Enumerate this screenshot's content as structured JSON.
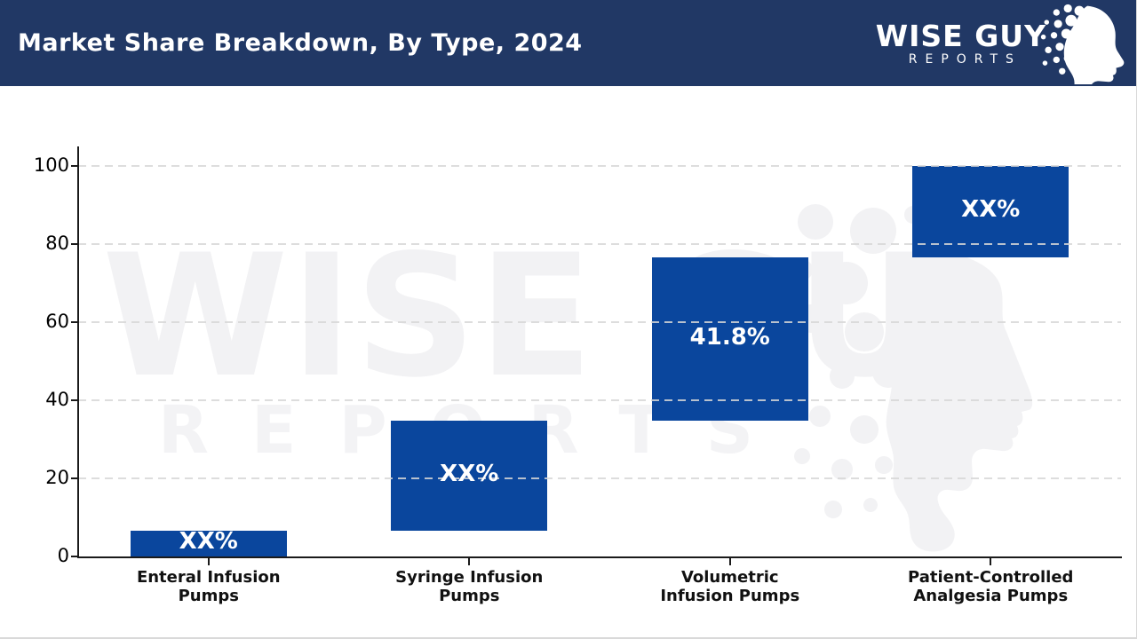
{
  "header": {
    "title": "Market Share Breakdown, By Type, 2024",
    "logo": {
      "name": "WISE GUY",
      "reports": "REPORTS"
    }
  },
  "watermark": {
    "line1": "WISE GU",
    "line2": "REPORTS"
  },
  "colors": {
    "header_bg": "#213865",
    "bar_blue": "#0a469d",
    "grid_gray": "#d7d7d7",
    "axis_black": "#1a1a1a",
    "watermark_gray": "#f2f2f4"
  },
  "chart_data": {
    "type": "bar",
    "subtype": "floating-stacked-segments",
    "title": "Market Share Breakdown, By Type, 2024",
    "xlabel": "",
    "ylabel": "",
    "ylim": [
      0,
      105
    ],
    "yticks": [
      0,
      20,
      40,
      60,
      80,
      100
    ],
    "grid": "horizontal-dashed",
    "legend": "none",
    "categories": [
      "Enteral Infusion Pumps",
      "Syringe Infusion Pumps",
      "Volumetric Infusion Pumps",
      "Patient-Controlled Analgesia Pumps"
    ],
    "category_lines": [
      [
        "Enteral Infusion",
        "Pumps"
      ],
      [
        "Syringe Infusion",
        "Pumps"
      ],
      [
        "Volumetric",
        "Infusion Pumps"
      ],
      [
        "Patient-Controlled",
        "Analgesia Pumps"
      ]
    ],
    "bars": [
      {
        "category": "Enteral Infusion Pumps",
        "start": 0,
        "end": 6.6,
        "value": 6.6,
        "label": "XX%"
      },
      {
        "category": "Syringe Infusion Pumps",
        "start": 6.6,
        "end": 34.8,
        "value": 28.2,
        "label": "XX%"
      },
      {
        "category": "Volumetric Infusion Pumps",
        "start": 34.8,
        "end": 76.6,
        "value": 41.8,
        "label": "41.8%"
      },
      {
        "category": "Patient-Controlled Analgesia Pumps",
        "start": 76.6,
        "end": 100,
        "value": 23.4,
        "label": "XX%"
      }
    ]
  }
}
